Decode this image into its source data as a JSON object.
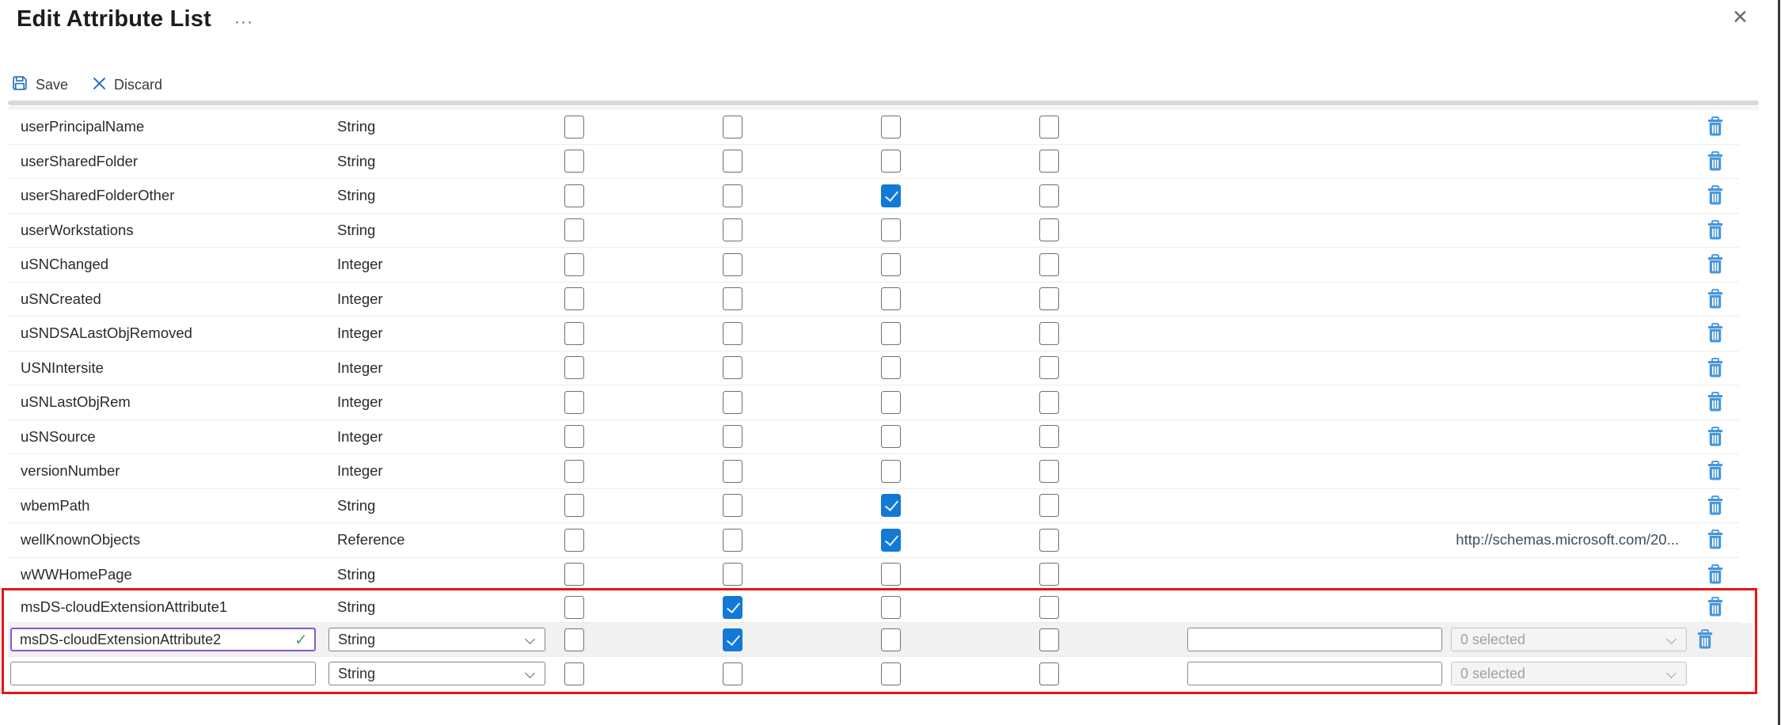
{
  "header": {
    "title": "Edit Attribute List",
    "overflow_menu": "···",
    "close_glyph": "✕"
  },
  "toolbar": {
    "save_label": "Save",
    "discard_label": "Discard"
  },
  "rows": [
    {
      "name": "userPrincipalName",
      "type": "String",
      "checks": [
        false,
        false,
        false,
        false
      ],
      "value": "",
      "has_delete": true
    },
    {
      "name": "userSharedFolder",
      "type": "String",
      "checks": [
        false,
        false,
        false,
        false
      ],
      "value": "",
      "has_delete": true
    },
    {
      "name": "userSharedFolderOther",
      "type": "String",
      "checks": [
        false,
        false,
        true,
        false
      ],
      "value": "",
      "has_delete": true
    },
    {
      "name": "userWorkstations",
      "type": "String",
      "checks": [
        false,
        false,
        false,
        false
      ],
      "value": "",
      "has_delete": true
    },
    {
      "name": "uSNChanged",
      "type": "Integer",
      "checks": [
        false,
        false,
        false,
        false
      ],
      "value": "",
      "has_delete": true
    },
    {
      "name": "uSNCreated",
      "type": "Integer",
      "checks": [
        false,
        false,
        false,
        false
      ],
      "value": "",
      "has_delete": true
    },
    {
      "name": "uSNDSALastObjRemoved",
      "type": "Integer",
      "checks": [
        false,
        false,
        false,
        false
      ],
      "value": "",
      "has_delete": true
    },
    {
      "name": "USNIntersite",
      "type": "Integer",
      "checks": [
        false,
        false,
        false,
        false
      ],
      "value": "",
      "has_delete": true
    },
    {
      "name": "uSNLastObjRem",
      "type": "Integer",
      "checks": [
        false,
        false,
        false,
        false
      ],
      "value": "",
      "has_delete": true
    },
    {
      "name": "uSNSource",
      "type": "Integer",
      "checks": [
        false,
        false,
        false,
        false
      ],
      "value": "",
      "has_delete": true
    },
    {
      "name": "versionNumber",
      "type": "Integer",
      "checks": [
        false,
        false,
        false,
        false
      ],
      "value": "",
      "has_delete": true
    },
    {
      "name": "wbemPath",
      "type": "String",
      "checks": [
        false,
        false,
        true,
        false
      ],
      "value": "",
      "has_delete": true
    },
    {
      "name": "wellKnownObjects",
      "type": "Reference",
      "checks": [
        false,
        false,
        true,
        false
      ],
      "value": "http://schemas.microsoft.com/20...",
      "has_delete": true
    },
    {
      "name": "wWWHomePage",
      "type": "String",
      "checks": [
        false,
        false,
        false,
        false
      ],
      "value": "",
      "has_delete": true
    },
    {
      "name": "msDS-cloudExtensionAttribute1",
      "type": "String",
      "checks": [
        false,
        true,
        false,
        false
      ],
      "value": "",
      "has_delete": true,
      "in_annotation": true
    }
  ],
  "edit_rows": [
    {
      "name_value": "msDS-cloudExtensionAttribute2",
      "name_valid": true,
      "valid_glyph": "✓",
      "type_selected": "String",
      "checks": [
        false,
        true,
        false,
        false
      ],
      "value_input": "",
      "multi_selected": "0 selected",
      "has_delete": true,
      "highlighted": true
    },
    {
      "name_value": "",
      "name_valid": false,
      "valid_glyph": "",
      "type_selected": "String",
      "checks": [
        false,
        false,
        false,
        false
      ],
      "value_input": "",
      "multi_selected": "0 selected",
      "has_delete": false,
      "highlighted": false
    }
  ],
  "colors": {
    "checkbox_checked": "#1279d7",
    "toolbar_icon_blue": "#1b6fc4",
    "delete_icon_blue": "#4596db",
    "annotation_red": "#ec1313",
    "valid_green": "#4ba64b",
    "valid_input_border_purple": "#8a57c8"
  },
  "icons": {
    "save": "floppy-disk outline",
    "discard": "x-cross",
    "close": "x-cross",
    "more": "ellipsis",
    "delete": "trash-can",
    "dropdown": "chevron-down",
    "checked": "checkmark"
  }
}
